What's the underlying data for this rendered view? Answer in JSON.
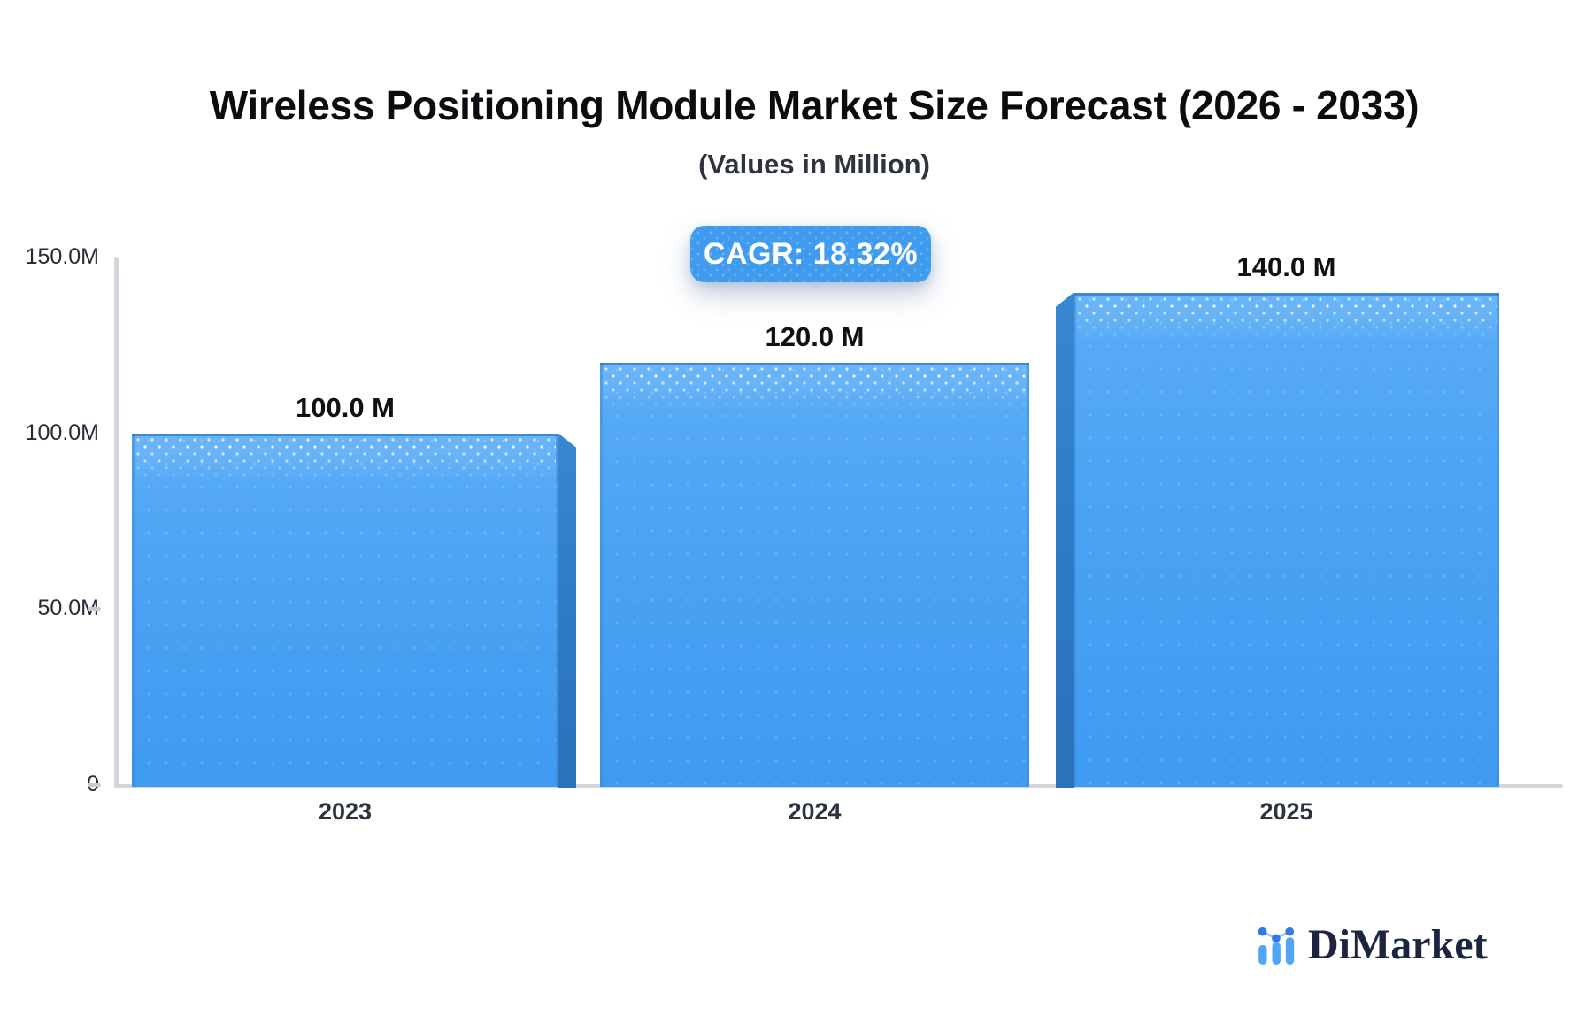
{
  "header": {
    "title": "Wireless Positioning Module Market Size Forecast (2026 - 2033)",
    "subtitle": "(Values in Million)"
  },
  "badge": {
    "text": "CAGR: 18.32%",
    "bg_color": "#3f9bee",
    "text_color": "#ffffff"
  },
  "chart_data": {
    "type": "bar",
    "title": "Wireless Positioning Module Market Size Forecast (2026 - 2033)",
    "subtitle": "(Values in Million)",
    "unit": "Million",
    "categories": [
      "2023",
      "2024",
      "2025"
    ],
    "values": [
      100,
      120,
      140
    ],
    "value_labels": [
      "100.0 M",
      "120.0 M",
      "140.0 M"
    ],
    "cagr_percent": 18.32,
    "y_axis": {
      "range": [
        0,
        150
      ],
      "ticks": [
        {
          "label": "150.0M",
          "value": 150,
          "dash": false
        },
        {
          "label": "100.0M",
          "value": 100,
          "dash": false
        },
        {
          "label": "50.0M",
          "value": 50,
          "dash": true
        },
        {
          "label": "0",
          "value": 0,
          "dash": true
        }
      ]
    },
    "grid": "off",
    "legend": "none",
    "bar_color_top": "#5aadf6",
    "bar_color_bottom": "#3f9bf1",
    "bar_side_color": "#2d7ac4",
    "axis_line_color": "#d2d5db"
  },
  "logo": {
    "brand": "DiMarket",
    "icon": "mini-bar-line-chart-icon"
  }
}
